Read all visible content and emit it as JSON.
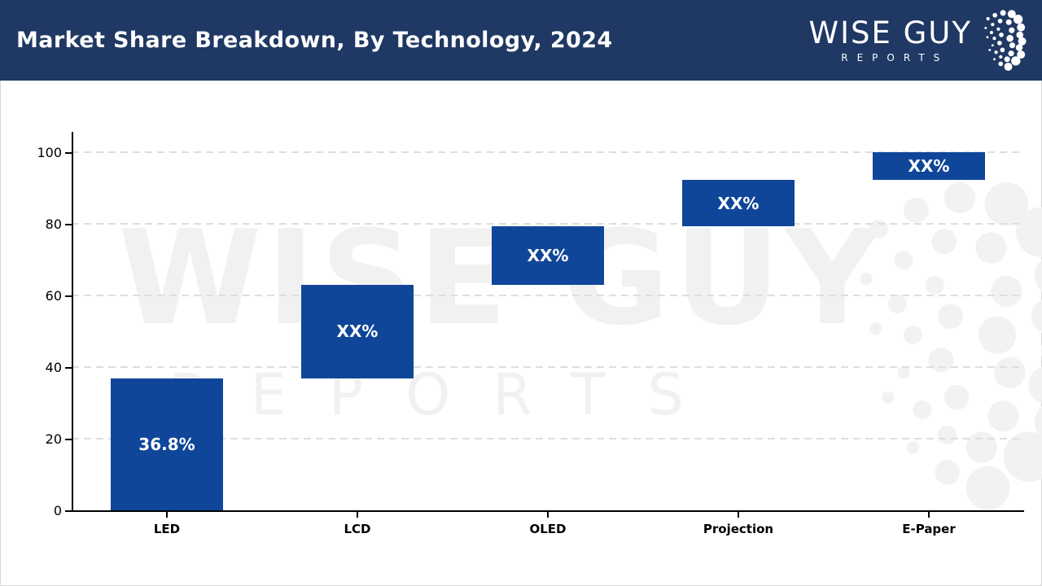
{
  "header": {
    "title": "Market Share Breakdown, By Technology, 2024"
  },
  "logo": {
    "line1": "WISE GUY",
    "line2": "REPORTS"
  },
  "watermark": {
    "line1": "WISE GUY",
    "line2": "REPORTS"
  },
  "chart_data": {
    "type": "bar",
    "subtype": "waterfall",
    "title": "Market Share Breakdown, By Technology, 2024",
    "categories": [
      "LED",
      "LCD",
      "OLED",
      "Projection",
      "E-Paper"
    ],
    "series": [
      {
        "name": "Market share (%)",
        "segments": [
          {
            "category": "LED",
            "start": 0,
            "end": 36.8,
            "value_label": "36.8%"
          },
          {
            "category": "LCD",
            "start": 36.8,
            "end": 63.0,
            "value_label": "XX%"
          },
          {
            "category": "OLED",
            "start": 63.0,
            "end": 79.2,
            "value_label": "XX%"
          },
          {
            "category": "Projection",
            "start": 79.2,
            "end": 92.2,
            "value_label": "XX%"
          },
          {
            "category": "E-Paper",
            "start": 92.2,
            "end": 100,
            "value_label": "XX%"
          }
        ]
      }
    ],
    "yticks": [
      0,
      20,
      40,
      60,
      80,
      100
    ],
    "ylim": [
      0,
      106
    ],
    "xlabel": "",
    "ylabel": "",
    "grid": "horizontal-dashed",
    "legend": "none"
  },
  "colors": {
    "header_bg": "#1f3864",
    "bar": "#104699",
    "bar_label": "#ffffff",
    "grid": "#dedede",
    "axis": "#000000",
    "watermark": "#f1f1f1"
  }
}
